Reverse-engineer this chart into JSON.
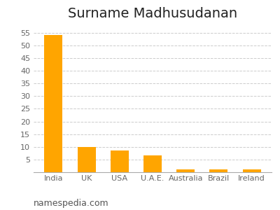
{
  "title": "Surname Madhusudanan",
  "categories": [
    "India",
    "UK",
    "USA",
    "U.A.E.",
    "Australia",
    "Brazil",
    "Ireland"
  ],
  "values": [
    54,
    10,
    8.5,
    6.5,
    1,
    1,
    1
  ],
  "bar_color": "#FFA500",
  "background_color": "#ffffff",
  "ylim": [
    0,
    58
  ],
  "yticks": [
    5,
    10,
    15,
    20,
    25,
    30,
    35,
    40,
    45,
    50,
    55
  ],
  "grid_color": "#cccccc",
  "title_fontsize": 14,
  "tick_fontsize": 8,
  "footer_text": "namespedia.com",
  "footer_fontsize": 9,
  "bar_width": 0.55
}
